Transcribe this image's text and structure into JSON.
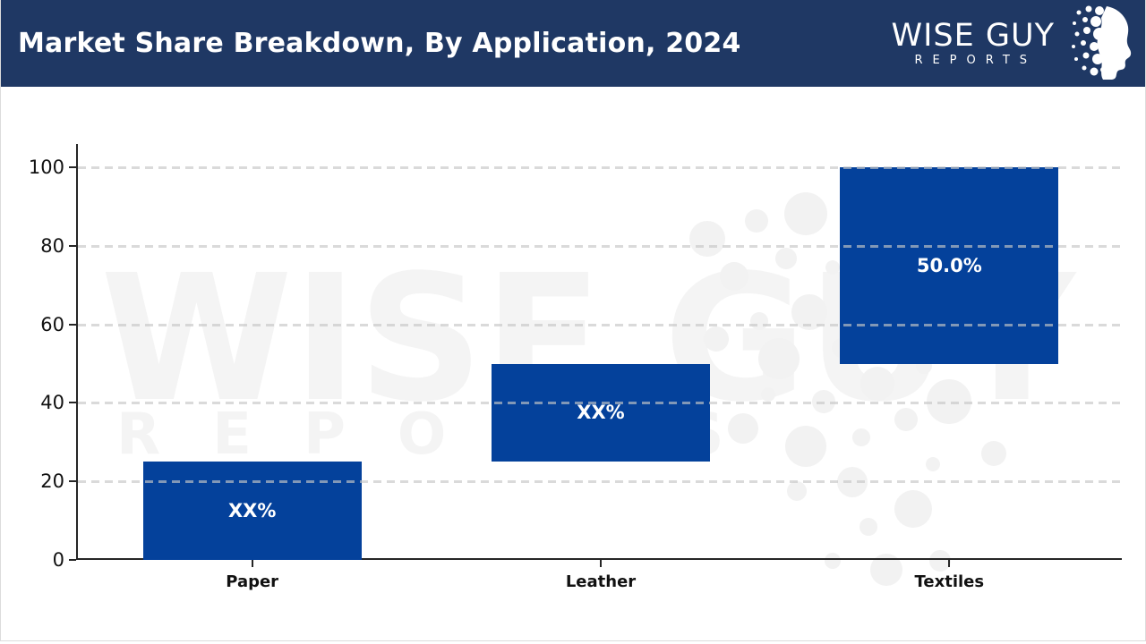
{
  "header": {
    "title": "Market Share Breakdown, By Application, 2024",
    "logo": {
      "line1": "WISE GUY",
      "line2": "REPORTS"
    }
  },
  "watermark": {
    "line1": "WISE GUY",
    "line2": "REPORTS"
  },
  "chart_data": {
    "type": "bar",
    "subtype": "waterfall-floating-bars",
    "title": "Market Share Breakdown, By Application, 2024",
    "categories": [
      "Paper",
      "Leather",
      "Textiles"
    ],
    "bars": [
      {
        "category": "Paper",
        "start": 0,
        "end": 25,
        "label": "XX%"
      },
      {
        "category": "Leather",
        "start": 25,
        "end": 50,
        "label": "XX%"
      },
      {
        "category": "Textiles",
        "start": 50,
        "end": 100,
        "label": "50.0%"
      }
    ],
    "xlabel": "",
    "ylabel": "",
    "ylim": [
      0,
      100
    ],
    "yticks": [
      0,
      20,
      40,
      60,
      80,
      100
    ],
    "grid": "horizontal-dashed",
    "legend": "none",
    "colors": {
      "bar": "#04419B",
      "bar_label": "#FFFFFF",
      "axis": "#262626",
      "tick_label": "#111111",
      "grid_line": "#D8D8D8",
      "header_bg": "#1F3864",
      "header_text": "#FFFFFF",
      "watermark": "#F4F4F4",
      "background": "#FFFFFF"
    }
  }
}
